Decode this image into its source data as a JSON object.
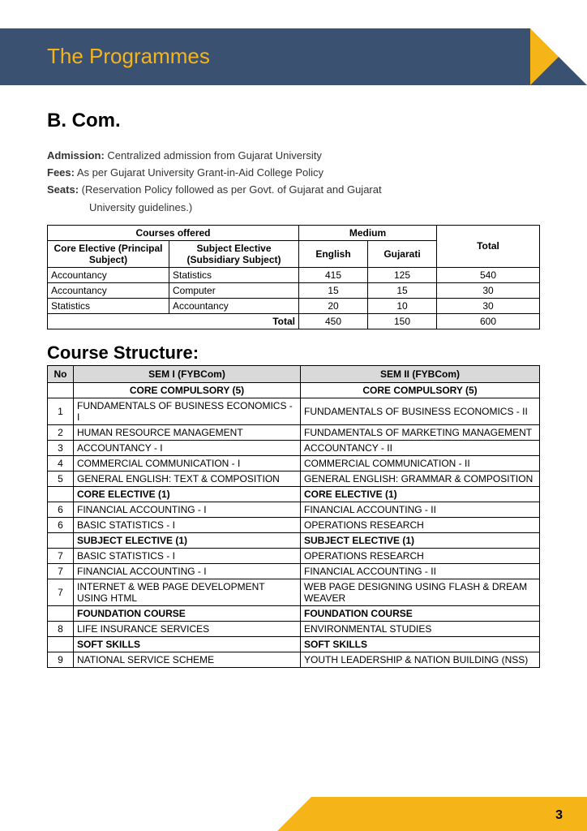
{
  "header": {
    "title": "The Programmes"
  },
  "section": {
    "title": "B. Com.",
    "admission_label": "Admission:",
    "admission_text": " Centralized admission from Gujarat University",
    "fees_label": "Fees:",
    "fees_text": " As per Gujarat University Grant-in-Aid College Policy",
    "seats_label": "Seats:",
    "seats_text": " (Reservation Policy followed as per Govt. of Gujarat and Gujarat",
    "seats_text2": "University guidelines.)"
  },
  "table1": {
    "h_courses": "Courses offered",
    "h_medium": "Medium",
    "h_total": "Total",
    "h_core": "Core Elective (Principal Subject)",
    "h_subj": "Subject Elective (Subsidiary Subject)",
    "h_eng": "English",
    "h_guj": "Gujarati",
    "rows": [
      {
        "core": "Accountancy",
        "subj": "Statistics",
        "eng": "415",
        "guj": "125",
        "tot": "540"
      },
      {
        "core": "Accountancy",
        "subj": "Computer",
        "eng": "15",
        "guj": "15",
        "tot": "30"
      },
      {
        "core": "Statistics",
        "subj": "Accountancy",
        "eng": "20",
        "guj": "10",
        "tot": "30"
      }
    ],
    "total_label": "Total",
    "total_eng": "450",
    "total_guj": "150",
    "total_tot": "600"
  },
  "structure": {
    "title": "Course Structure:",
    "h_no": "No",
    "h_sem1": "SEM I   (FYBCom)",
    "h_sem2": "SEM II  (FYBCom)",
    "rows": [
      {
        "no": "",
        "s1": "CORE COMPULSORY (5)",
        "s2": "CORE COMPULSORY (5)",
        "hdr": "center"
      },
      {
        "no": "1",
        "s1": "FUNDAMENTALS OF BUSINESS ECONOMICS - I",
        "s2": "FUNDAMENTALS OF BUSINESS ECONOMICS - II"
      },
      {
        "no": "2",
        "s1": "HUMAN RESOURCE MANAGEMENT",
        "s2": "FUNDAMENTALS OF MARKETING MANAGEMENT"
      },
      {
        "no": "3",
        "s1": "ACCOUNTANCY - I",
        "s2": "ACCOUNTANCY - II"
      },
      {
        "no": "4",
        "s1": "COMMERCIAL COMMUNICATION - I",
        "s2": "COMMERCIAL COMMUNICATION - II"
      },
      {
        "no": "5",
        "s1": "GENERAL ENGLISH: TEXT & COMPOSITION",
        "s2": "GENERAL ENGLISH: GRAMMAR & COMPOSITION"
      },
      {
        "no": "",
        "s1": "CORE ELECTIVE (1)",
        "s2": "CORE ELECTIVE (1)",
        "hdr": "left"
      },
      {
        "no": "6",
        "s1": "FINANCIAL ACCOUNTING - I",
        "s2": "FINANCIAL ACCOUNTING - II"
      },
      {
        "no": "6",
        "s1": "BASIC STATISTICS - I",
        "s2": "OPERATIONS RESEARCH"
      },
      {
        "no": "",
        "s1": "SUBJECT ELECTIVE (1)",
        "s2": "SUBJECT ELECTIVE (1)",
        "hdr": "left"
      },
      {
        "no": "7",
        "s1": "BASIC STATISTICS - I",
        "s2": "OPERATIONS RESEARCH"
      },
      {
        "no": "7",
        "s1": "FINANCIAL ACCOUNTING - I",
        "s2": "FINANCIAL ACCOUNTING - II"
      },
      {
        "no": "7",
        "s1": "INTERNET & WEB PAGE DEVELOPMENT USING HTML",
        "s2": "WEB PAGE DESIGNING USING FLASH & DREAM WEAVER"
      },
      {
        "no": "",
        "s1": "FOUNDATION COURSE",
        "s2": "FOUNDATION COURSE",
        "hdr": "left"
      },
      {
        "no": "8",
        "s1": "LIFE INSURANCE SERVICES",
        "s2": "ENVIRONMENTAL STUDIES"
      },
      {
        "no": "",
        "s1": "SOFT SKILLS",
        "s2": "SOFT SKILLS",
        "hdr": "left"
      },
      {
        "no": "9",
        "s1": "NATIONAL SERVICE SCHEME",
        "s2": "YOUTH LEADERSHIP & NATION BUILDING (NSS)"
      }
    ]
  },
  "page_number": "3",
  "colors": {
    "band": "#3b5171",
    "accent": "#f5b417",
    "text": "#333",
    "border": "#000",
    "table_header_bg": "#d9d9d9"
  }
}
